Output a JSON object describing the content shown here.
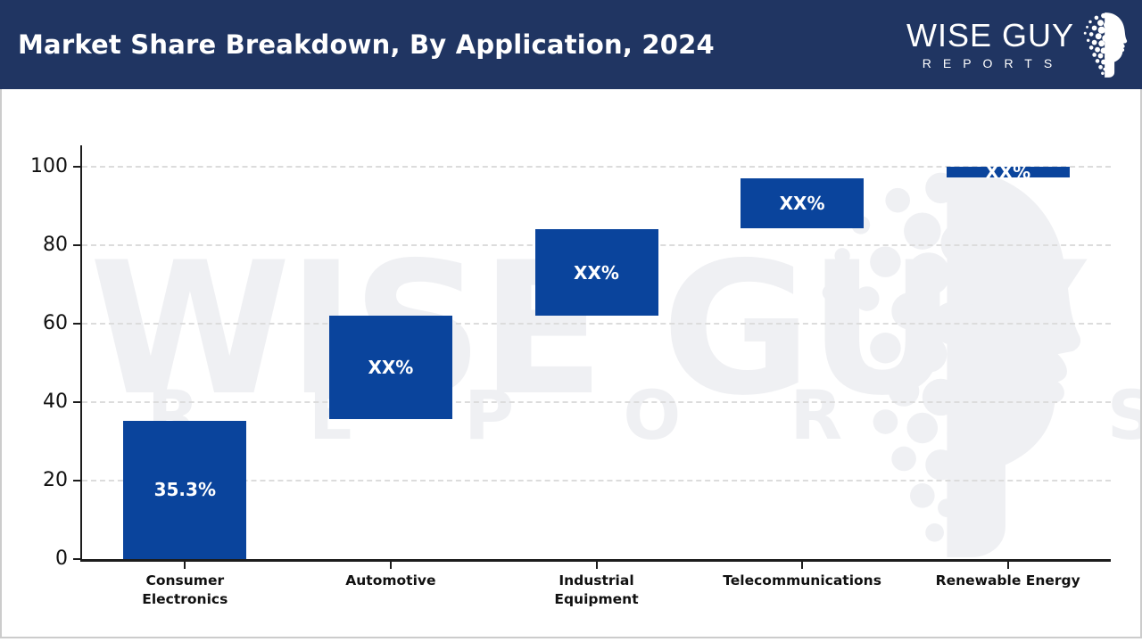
{
  "header": {
    "title": "Market Share Breakdown, By Application, 2024",
    "logo": {
      "brand": "WISE GUY",
      "sub": "REPORTS"
    }
  },
  "watermark": {
    "brand": "WISE GUY",
    "sub": "R E P O R T S"
  },
  "chart_data": {
    "type": "bar",
    "subtype": "floating-segment-waterfall",
    "title": "Market Share Breakdown, By Application, 2024",
    "xlabel": "",
    "ylabel": "",
    "ylim": [
      0,
      100
    ],
    "yticks": [
      0,
      20,
      40,
      60,
      80,
      100
    ],
    "grid": "horizontal-dashed",
    "legend": "none",
    "categories": [
      "Consumer Electronics",
      "Automotive",
      "Industrial Equipment",
      "Telecommunications",
      "Renewable Energy"
    ],
    "category_lines": [
      [
        "Consumer",
        "Electronics"
      ],
      [
        "Automotive"
      ],
      [
        "Industrial",
        "Equipment"
      ],
      [
        "Telecommunications"
      ],
      [
        "Renewable Energy"
      ]
    ],
    "segments": [
      {
        "category": "Consumer Electronics",
        "start": 0,
        "end": 35.3,
        "label": "35.3%"
      },
      {
        "category": "Automotive",
        "start": 35.7,
        "end": 62.0,
        "label": "XX%"
      },
      {
        "category": "Industrial Equipment",
        "start": 62.0,
        "end": 84.1,
        "label": "XX%"
      },
      {
        "category": "Telecommunications",
        "start": 84.3,
        "end": 97.0,
        "label": "XX%"
      },
      {
        "category": "Renewable Energy",
        "start": 97.3,
        "end": 100.0,
        "label": "XX%"
      }
    ]
  },
  "colors": {
    "header_bg": "#203562",
    "bar": "#0a449c",
    "bar_label": "#ffffff",
    "grid": "#dcdcdc",
    "axis": "#1c1c1c",
    "watermark": "#eff0f3",
    "frame": "#cccccc"
  }
}
